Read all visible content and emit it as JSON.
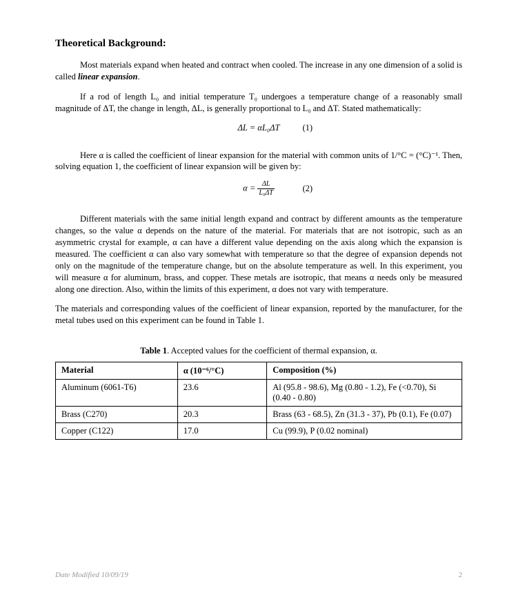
{
  "heading": "Theoretical Background:",
  "para1_a": "Most materials expand when heated and contract when cooled. The increase in any one dimension of a solid is called ",
  "para1_b": "linear expansion",
  "para1_c": ".",
  "para2": "If a rod of length L₀ and initial temperature T₀ undergoes a temperature change of a reasonably small magnitude of ΔT, the change in length, ΔL, is generally proportional to L₀ and ΔT. Stated mathematically:",
  "eq1": "ΔL = αL₀ΔT",
  "eq1_num": "(1)",
  "para3": "Here α is called the coefficient of linear expansion for the material with common units of 1/°C = (°C)⁻¹. Then, solving equation 1, the coefficient of linear expansion will be given by:",
  "eq2_lhs": "α = ",
  "eq2_num_frac": "ΔL",
  "eq2_den_frac": "L₀ΔT",
  "eq2_num": "(2)",
  "para4": "Different materials with the same initial length expand and contract by different amounts as the temperature changes, so the value α depends on the nature of the material. For materials that are not isotropic, such as an asymmetric crystal for example, α can have a different value depending on the axis along which the expansion is measured. The coefficient α can also vary somewhat with temperature so that the degree of expansion depends not only on the magnitude of the temperature change, but on the absolute temperature as well. In this experiment, you will measure α for aluminum, brass, and copper. These metals are isotropic, that means α needs only be measured along one direction. Also, within the limits of this experiment, α does not vary with temperature.",
  "para5": "The materials and corresponding values of the coefficient of linear expansion, reported by the manufacturer, for the metal tubes used on this experiment can be found in Table 1.",
  "table_caption_bold": "Table 1",
  "table_caption_rest": ". Accepted values for the coefficient of thermal expansion, α.",
  "table": {
    "headers": [
      "Material",
      "α (10⁻⁶/°C)",
      "Composition (%)"
    ],
    "rows": [
      [
        "Aluminum (6061-T6)",
        "23.6",
        "Al (95.8 - 98.6), Mg (0.80 - 1.2), Fe (<0.70), Si (0.40 - 0.80)"
      ],
      [
        "Brass (C270)",
        "20.3",
        "Brass (63 - 68.5), Zn (31.3 - 37), Pb (0.1), Fe (0.07)"
      ],
      [
        "Copper (C122)",
        "17.0",
        "Cu (99.9), P (0.02 nominal)"
      ]
    ]
  },
  "footer_date": "Date Modified 10/09/19",
  "footer_page": "2"
}
